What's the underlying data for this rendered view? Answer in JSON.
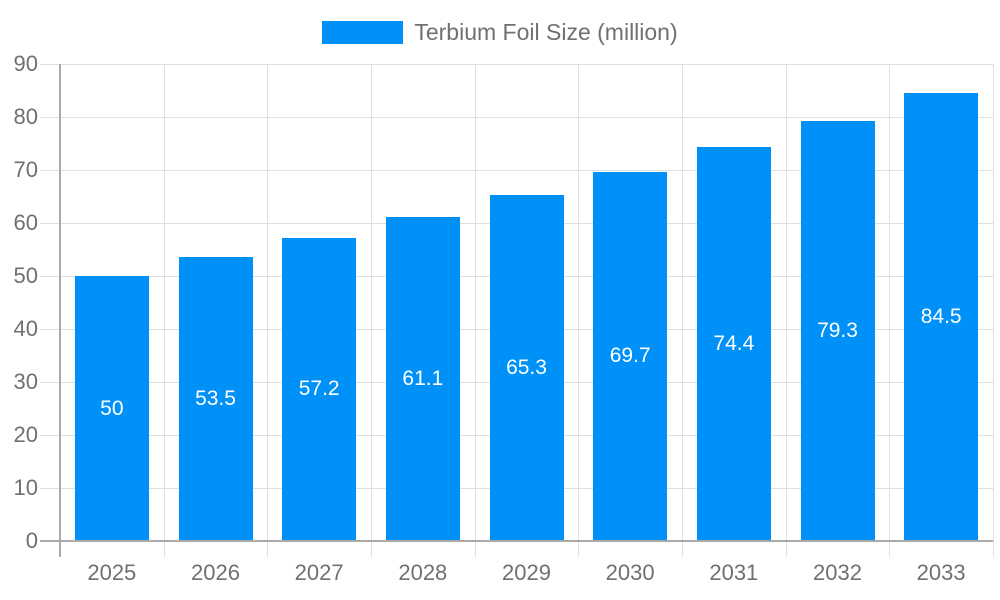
{
  "legend": {
    "label": "Terbium Foil Size (million)"
  },
  "chart_data": {
    "type": "bar",
    "title": "",
    "legend_entries": [
      "Terbium Foil Size (million)"
    ],
    "legend_position": "top",
    "categories": [
      "2025",
      "2026",
      "2027",
      "2028",
      "2029",
      "2030",
      "2031",
      "2032",
      "2033"
    ],
    "series": [
      {
        "name": "Terbium Foil Size (million)",
        "values": [
          50,
          53.5,
          57.2,
          61.1,
          65.3,
          69.7,
          74.4,
          79.3,
          84.5
        ],
        "value_labels": [
          "50",
          "53.5",
          "57.2",
          "61.1",
          "65.3",
          "69.7",
          "74.4",
          "79.3",
          "84.5"
        ]
      }
    ],
    "xlabel": "",
    "ylabel": "",
    "ylim": [
      0,
      90
    ],
    "ytick_step": 10,
    "ytick_labels": [
      "0",
      "10",
      "20",
      "30",
      "40",
      "50",
      "60",
      "70",
      "80",
      "90"
    ],
    "grid": true,
    "value_labels_inside_bars": true,
    "colors": {
      "bar": "#0091f8",
      "grid": "#e0e0e0",
      "axis": "#a9a9a9",
      "text": "#707070",
      "value_text": "#ffffff",
      "background": "#ffffff"
    }
  }
}
